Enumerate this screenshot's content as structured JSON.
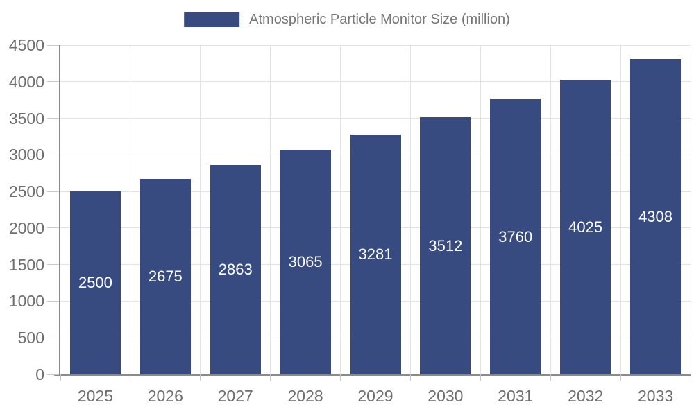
{
  "chart_data": {
    "type": "bar",
    "title": "Atmospheric Particle Monitor Size (million)",
    "categories": [
      "2025",
      "2026",
      "2027",
      "2028",
      "2029",
      "2030",
      "2031",
      "2032",
      "2033"
    ],
    "values": [
      2500,
      2675,
      2863,
      3065,
      3281,
      3512,
      3760,
      4025,
      4308
    ],
    "series": [
      {
        "name": "Atmospheric Particle Monitor Size (million)",
        "values": [
          2500,
          2675,
          2863,
          3065,
          3281,
          3512,
          3760,
          4025,
          4308
        ]
      }
    ],
    "bar_value_labels": [
      "2500",
      "2675",
      "2863",
      "3065",
      "3281",
      "3512",
      "3760",
      "4025",
      "4308"
    ],
    "xlabel": "",
    "ylabel": "",
    "ylim": [
      0,
      4500
    ],
    "yticks": [
      0,
      500,
      1000,
      1500,
      2000,
      2500,
      3000,
      3500,
      4000,
      4500
    ],
    "grid": true,
    "legend_position": "top-center",
    "colors": {
      "bar_fill": "#374B80",
      "bar_label_text": "#FFFFFF",
      "grid_line": "#E2E2E6",
      "axis_line": "#8A8A8A",
      "tick_mark": "#C9C9C9",
      "tick_label_text": "#6E6E6E",
      "legend_text": "#757575",
      "background": "#FFFFFF"
    }
  }
}
